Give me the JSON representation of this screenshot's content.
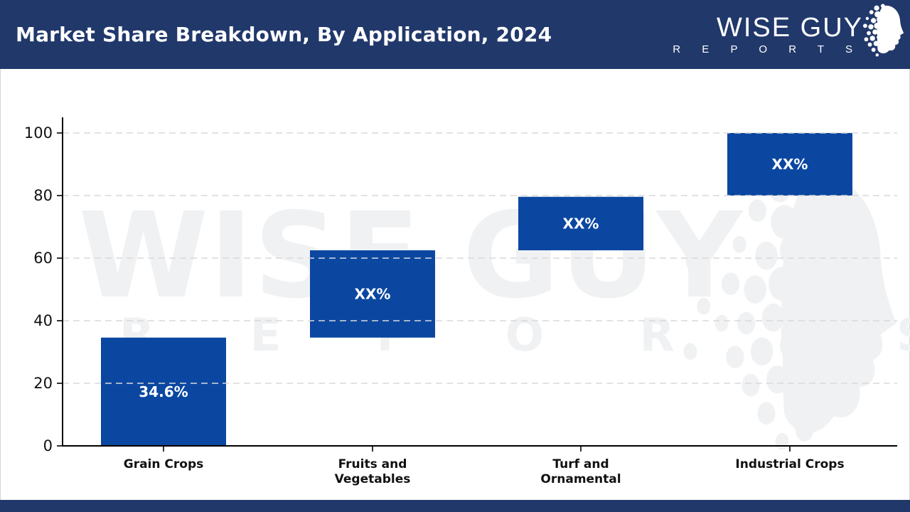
{
  "header": {
    "title": "Market Share Breakdown, By Application, 2024",
    "bg_color": "#21386b",
    "logo": {
      "name_top": "WISE GUY",
      "name_bottom": "R E P O R T S"
    }
  },
  "watermark": {
    "line1": "WISE GUY",
    "line2": "R E P O R T S"
  },
  "chart_data": {
    "type": "bar",
    "subtype": "waterfall-floating-bars",
    "title": "Market Share Breakdown, By Application, 2024",
    "categories": [
      "Grain Crops",
      "Fruits and Vegetables",
      "Turf and Ornamental",
      "Industrial Crops"
    ],
    "category_label_lines": [
      [
        "Grain Crops"
      ],
      [
        "Fruits and",
        "Vegetables"
      ],
      [
        "Turf and",
        "Ornamental"
      ],
      [
        "Industrial Crops"
      ]
    ],
    "bars": [
      {
        "category": "Grain Crops",
        "from": 0,
        "to": 34.6,
        "label": "34.6%"
      },
      {
        "category": "Fruits and Vegetables",
        "from": 34.6,
        "to": 62.5,
        "label": "XX%"
      },
      {
        "category": "Turf and Ornamental",
        "from": 62.5,
        "to": 79.6,
        "label": "XX%"
      },
      {
        "category": "Industrial Crops",
        "from": 80,
        "to": 100,
        "label": "XX%"
      }
    ],
    "xlabel": "",
    "ylabel": "",
    "ylim": [
      0,
      100
    ],
    "yticks": [
      0,
      20,
      40,
      60,
      80,
      100
    ],
    "grid": {
      "horizontal": true,
      "style": "dashed",
      "color": "#d9d9d9",
      "on_top_of_bars": true
    },
    "legend": "none",
    "bar_color": "#0b47a1",
    "bar_label_color": "#ffffff",
    "axis_color": "#000000",
    "tick_label_color": "#111111"
  },
  "footer": {
    "bg_color": "#21386b"
  }
}
